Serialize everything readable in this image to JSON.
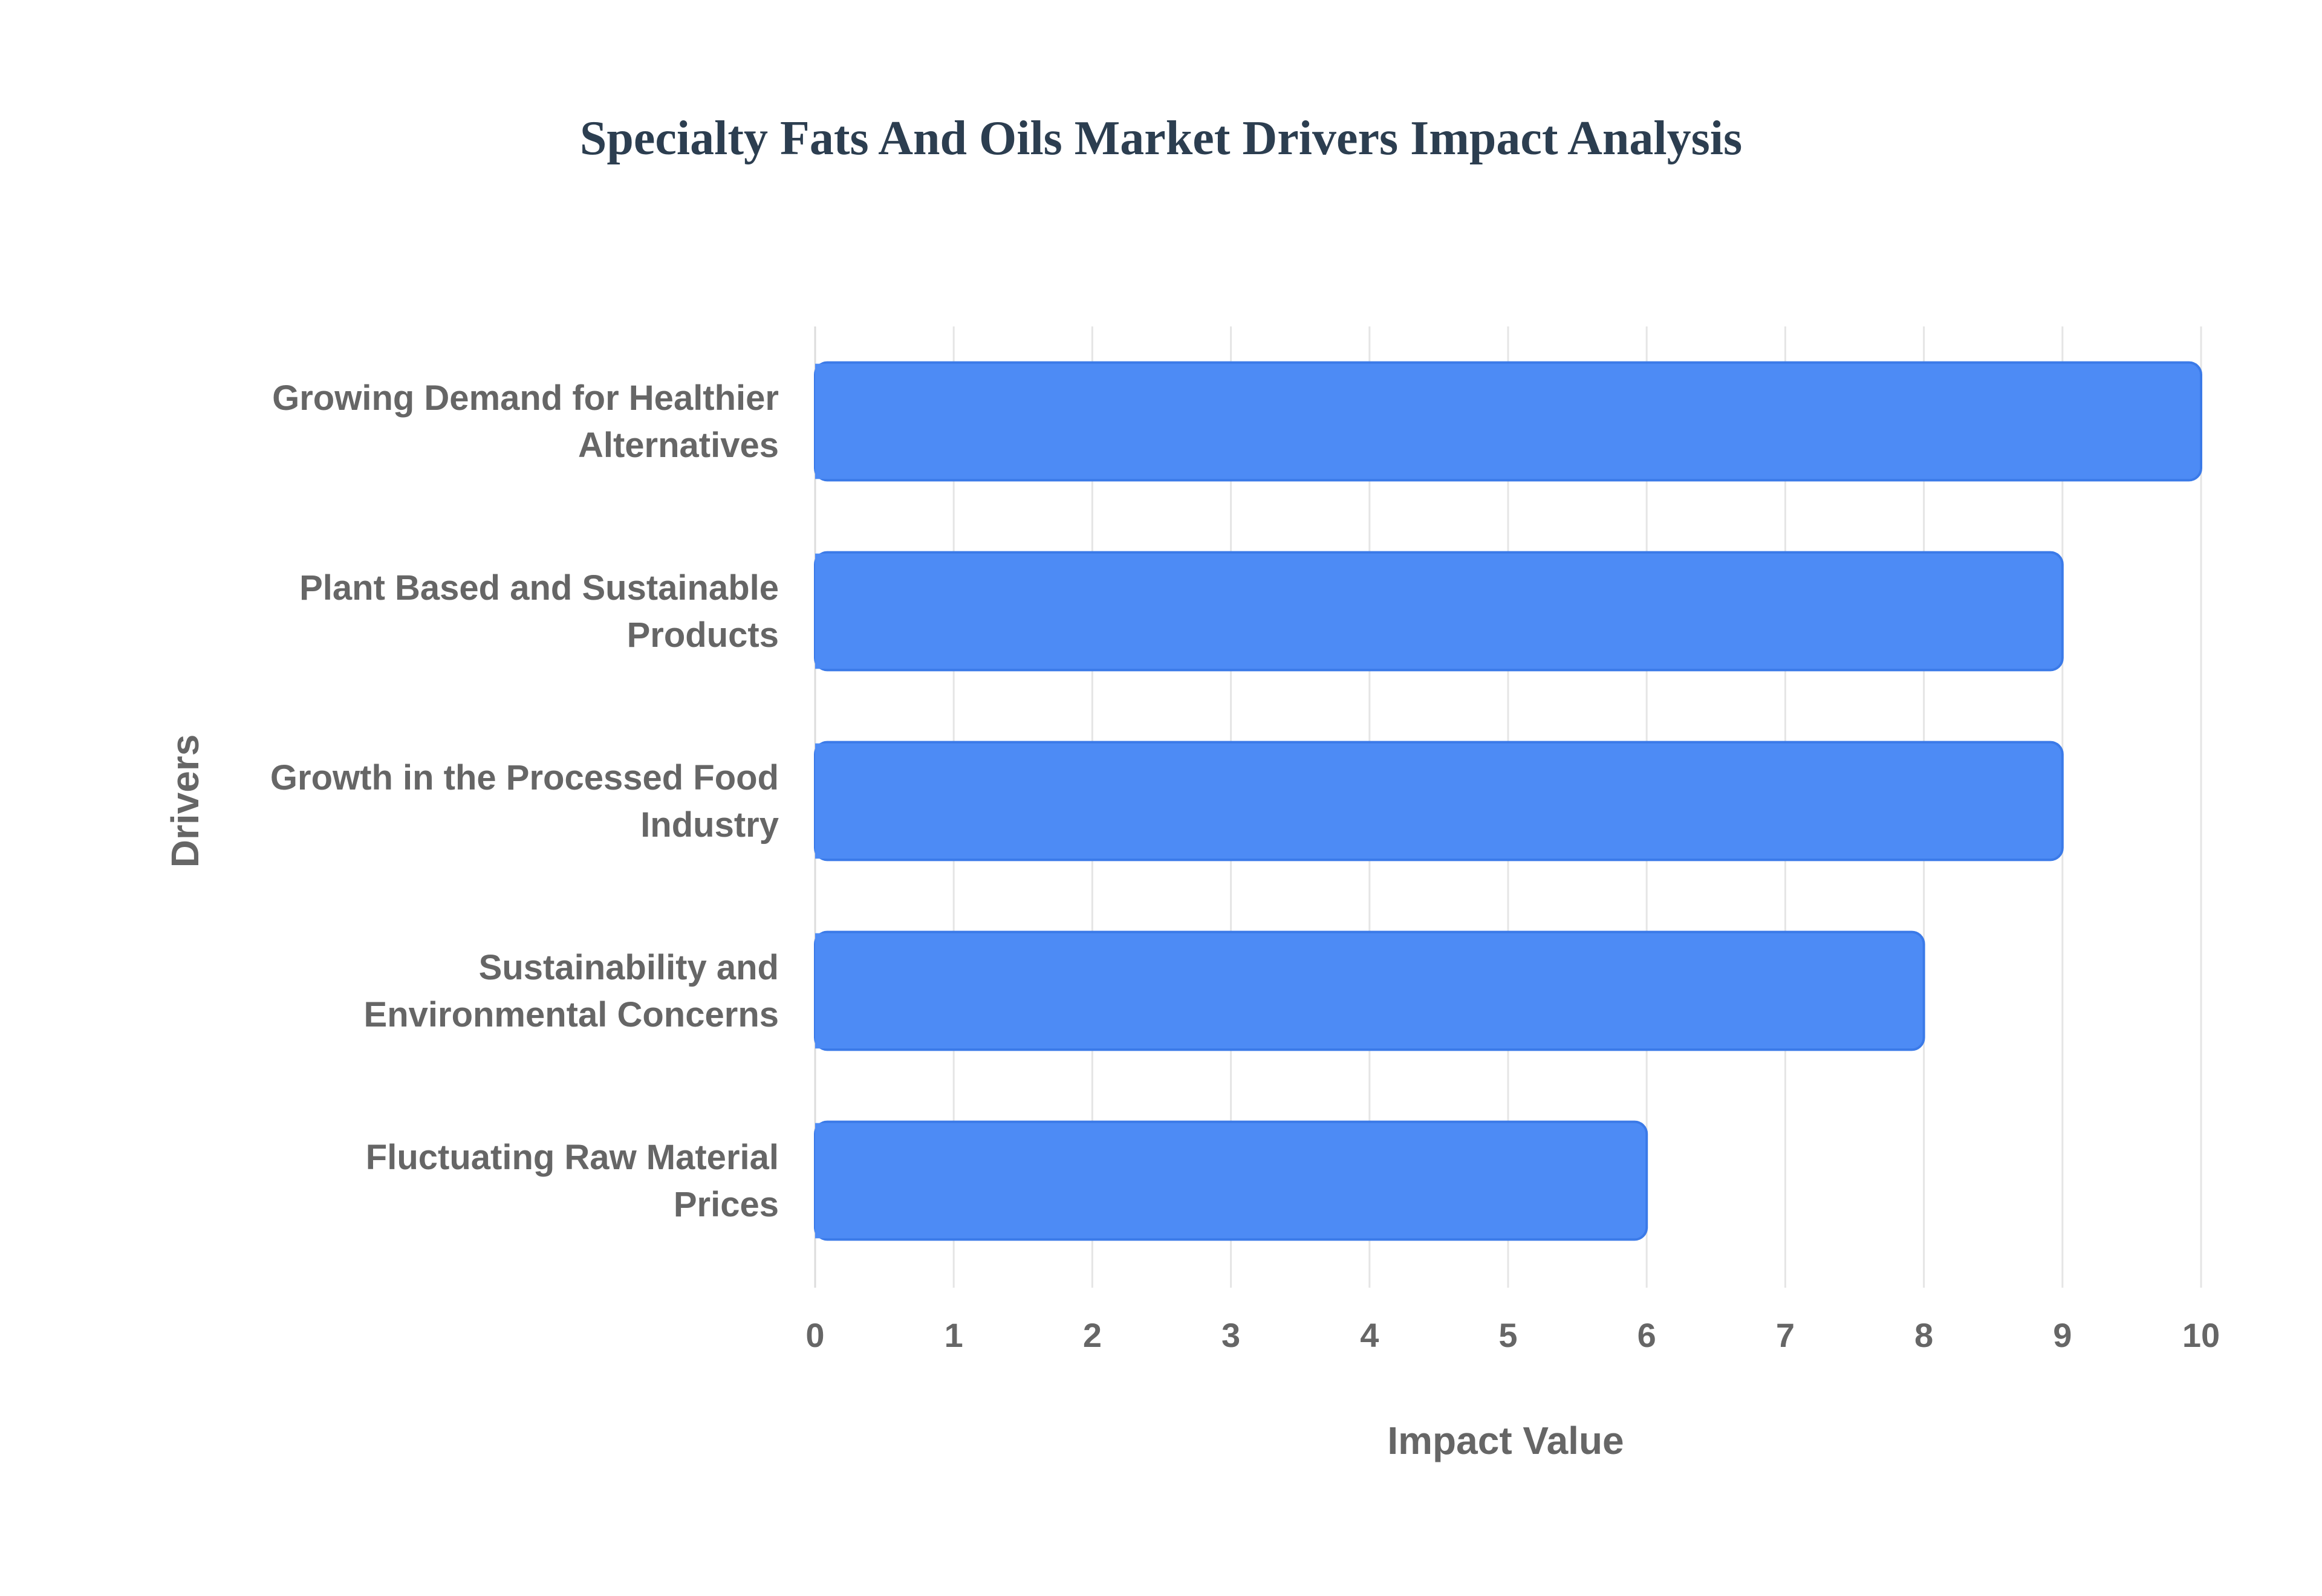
{
  "chart_data": {
    "type": "bar",
    "orientation": "horizontal",
    "title": "Specialty Fats And Oils Market Drivers Impact Analysis",
    "xlabel": "Impact Value",
    "ylabel": "Drivers",
    "categories": [
      [
        "Growing Demand for Healthier",
        "Alternatives"
      ],
      [
        "Plant Based and Sustainable",
        "Products"
      ],
      [
        "Growth in the Processed Food",
        "Industry"
      ],
      [
        "Sustainability and",
        "Environmental Concerns"
      ],
      [
        "Fluctuating Raw Material",
        "Prices"
      ]
    ],
    "values": [
      10,
      9,
      9,
      8,
      6
    ],
    "xlim": [
      0,
      10
    ],
    "xticks": [
      "0",
      "1",
      "2",
      "3",
      "4",
      "5",
      "6",
      "7",
      "8",
      "9",
      "10"
    ],
    "grid": true,
    "legend": "none",
    "colors": {
      "bar_fill": "#4d8bf5",
      "bar_border": "#3b7ae8",
      "title": "#2c3e50",
      "text": "#666666",
      "grid": "#e5e5e5"
    }
  }
}
